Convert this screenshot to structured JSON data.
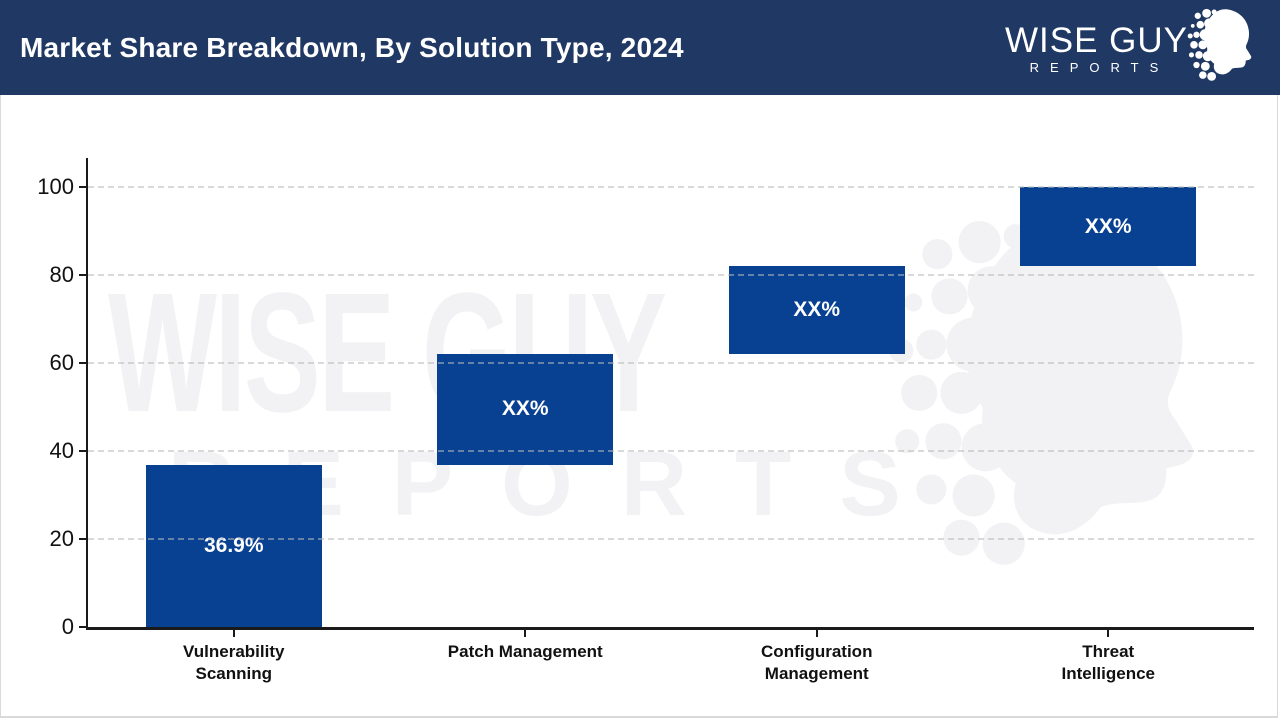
{
  "header": {
    "title": "Market Share Breakdown, By Solution Type, 2024",
    "logo": {
      "line1": "WISE GUY",
      "line2": "REPORTS"
    }
  },
  "watermark": {
    "line1": "WISE GUY",
    "line2": "REPORTS"
  },
  "colors": {
    "header_bg": "#203864",
    "bar": "#084092",
    "axis": "#1a1a1a",
    "gridline": "#d6d6d6",
    "watermark": "#f2f2f4",
    "card_border": "#d9d9d9",
    "value_label": "#ffffff"
  },
  "chart_data": {
    "type": "bar",
    "subtype": "waterfall",
    "title": "Market Share Breakdown, By Solution Type, 2024",
    "xlabel": "",
    "ylabel": "",
    "categories": [
      "Vulnerability\nScanning",
      "Patch Management",
      "Configuration\nManagement",
      "Threat\nIntelligence"
    ],
    "segments": [
      {
        "category": "Vulnerability Scanning",
        "start": 0,
        "end": 36.9,
        "label": "36.9%"
      },
      {
        "category": "Patch Management",
        "start": 36.9,
        "end": 62,
        "label": "XX%"
      },
      {
        "category": "Configuration Management",
        "start": 62,
        "end": 82,
        "label": "XX%"
      },
      {
        "category": "Threat Intelligence",
        "start": 82,
        "end": 100,
        "label": "XX%"
      }
    ],
    "yticks": [
      0,
      20,
      40,
      60,
      80,
      100
    ],
    "ylim": [
      0,
      106
    ],
    "grid": "horizontal-dashed",
    "legend": "none",
    "bar_color": "#084092",
    "value_label_color": "#ffffff"
  }
}
